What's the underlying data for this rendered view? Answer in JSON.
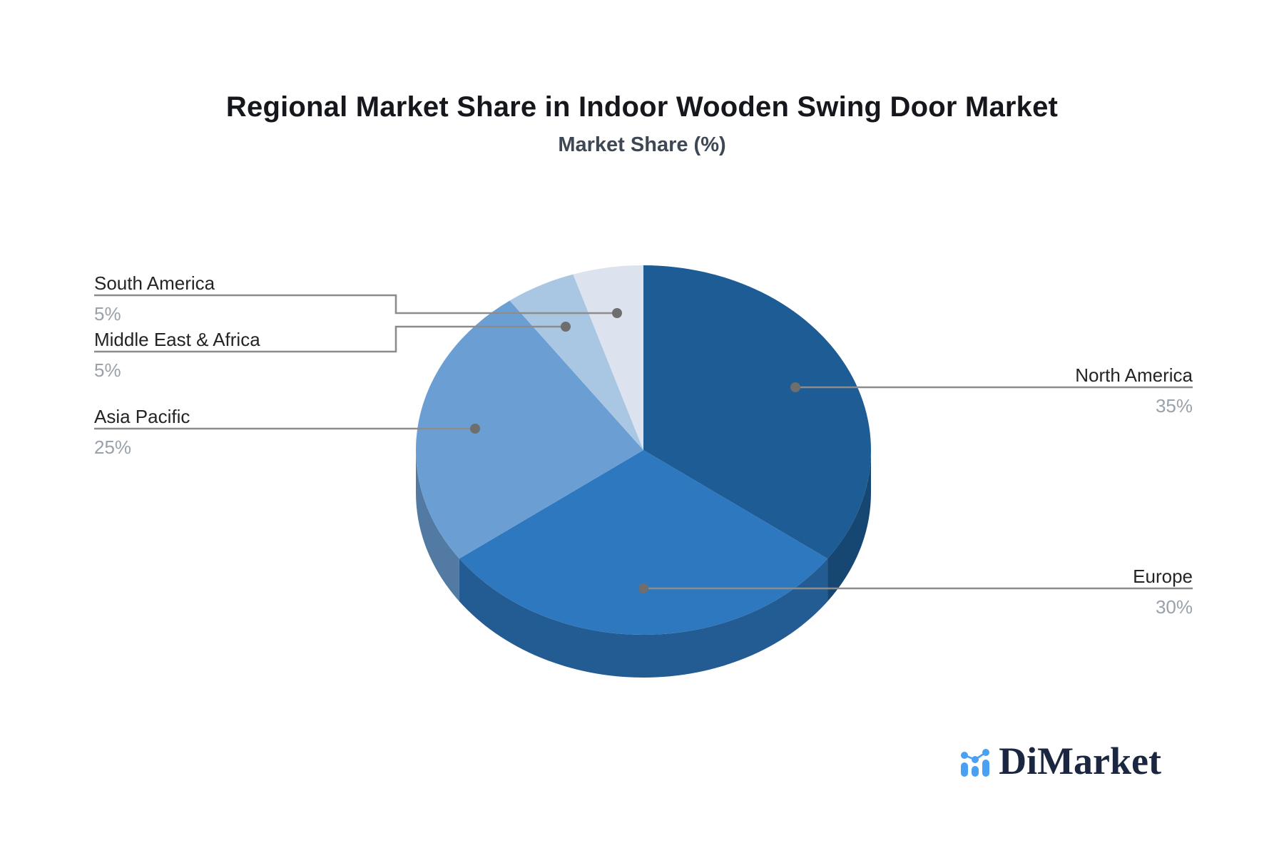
{
  "header": {
    "title": "Regional Market Share in Indoor Wooden Swing Door Market",
    "subtitle": "Market Share (%)"
  },
  "chart_data": {
    "type": "pie",
    "style": "3d",
    "title": "Regional Market Share in Indoor Wooden Swing Door Market",
    "subtitle": "Market Share (%)",
    "unit": "%",
    "direction": "clockwise",
    "start_angle_deg": 0,
    "legend_position": "callout-labels",
    "slices": [
      {
        "label": "North America",
        "value": 35,
        "display": "35%",
        "color": "#1d5c94"
      },
      {
        "label": "Europe",
        "value": 30,
        "display": "30%",
        "color": "#2d78be"
      },
      {
        "label": "Asia Pacific",
        "value": 25,
        "display": "25%",
        "color": "#6b9fd4"
      },
      {
        "label": "Middle East & Africa",
        "value": 5,
        "display": "5%",
        "color": "#a9c7e3"
      },
      {
        "label": "South America",
        "value": 5,
        "display": "5%",
        "color": "#dce3ee"
      }
    ]
  },
  "logo": {
    "text": "DiMarket",
    "icon": "bar-chart-icon",
    "accent_color": "#4aa0f2",
    "text_color": "#1b2740"
  },
  "colors": {
    "leader_line": "#8c8c8c",
    "dot": "#6e6e6e",
    "label_text": "#242424",
    "value_text": "#99a1a9"
  }
}
